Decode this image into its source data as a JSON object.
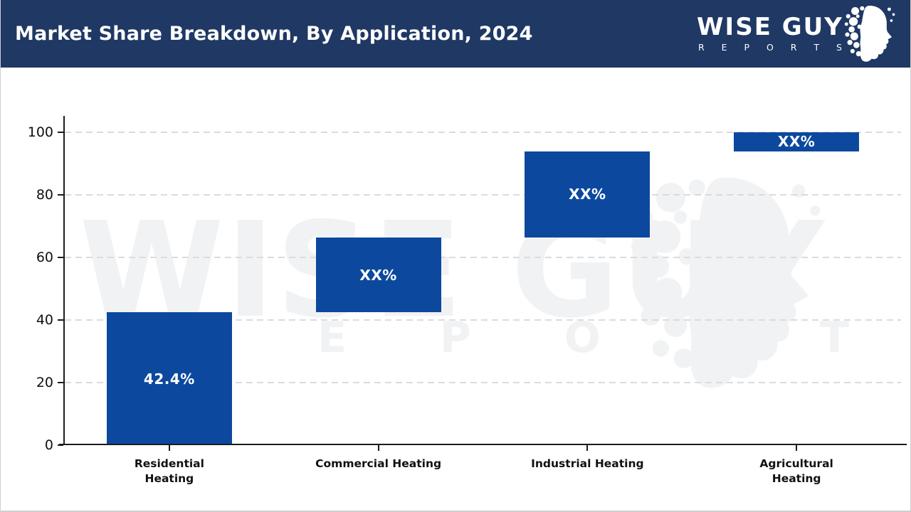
{
  "header": {
    "title": "Market Share Breakdown, By Application, 2024",
    "logo": {
      "line1": "WISE GUY",
      "line2": "REPORTS"
    }
  },
  "watermark": {
    "line1": "WISE GUY",
    "line2": "REPORTS"
  },
  "colors": {
    "header_bg": "#1F3864",
    "bar": "#0C499E",
    "grid": "#DBDBDB",
    "axis": "#1C1C1C",
    "wm": "#F1F2F4",
    "label_on_bar": "#FFFFFF",
    "border": "#CFCFCF"
  },
  "chart_data": {
    "type": "bar",
    "subtype": "waterfall",
    "title": "Market Share Breakdown, By Application, 2024",
    "xlabel": "",
    "ylabel": "",
    "categories": [
      "Residential\nHeating",
      "Commercial Heating",
      "Industrial Heating",
      "Agricultural\nHeating"
    ],
    "segments": [
      {
        "category": "Residential Heating",
        "start": 0,
        "end": 42.4,
        "value": 42.4,
        "label": "42.4%"
      },
      {
        "category": "Commercial Heating",
        "start": 42.4,
        "end": 66.4,
        "value": 24.0,
        "label": "XX%"
      },
      {
        "category": "Industrial Heating",
        "start": 66.4,
        "end": 93.9,
        "value": 27.5,
        "label": "XX%"
      },
      {
        "category": "Agricultural Heating",
        "start": 93.9,
        "end": 100,
        "value": 6.1,
        "label": "XX%"
      }
    ],
    "yticks": [
      0,
      20,
      40,
      60,
      80,
      100
    ],
    "ylim": [
      0,
      105.2
    ],
    "grid": "dashed-horizontal",
    "legend": "none",
    "bar_color": "#0C499E"
  }
}
